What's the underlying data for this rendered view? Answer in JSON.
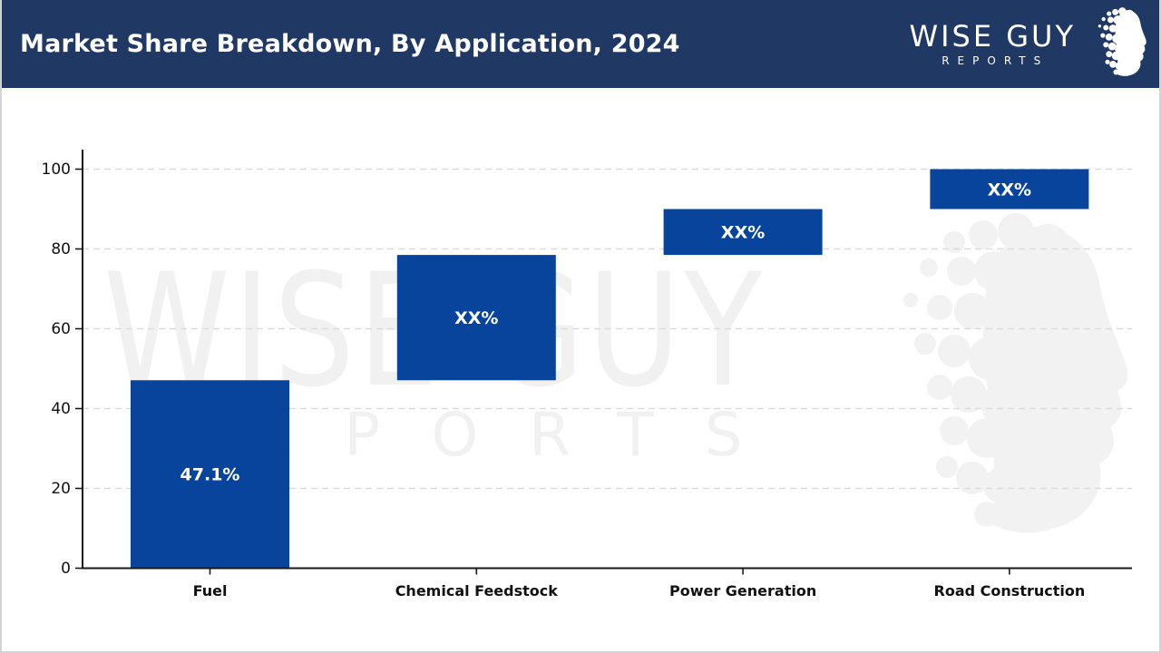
{
  "header": {
    "title": "Market Share Breakdown, By Application, 2024",
    "logo": {
      "wordmark": "WISE GUY",
      "subtitle": "REPORTS",
      "head_icon": "head-profile-dots-icon"
    }
  },
  "watermark": {
    "line1": "WISE GUY",
    "line2": "REPORTS",
    "head_icon": "head-profile-dots-icon"
  },
  "chart_data": {
    "type": "bar",
    "subtype": "waterfall",
    "title": "Market Share Breakdown, By Application, 2024",
    "categories": [
      "Fuel",
      "Chemical Feedstock",
      "Power Generation",
      "Road Construction"
    ],
    "segments": [
      {
        "category": "Fuel",
        "start": 0,
        "end": 47.1,
        "label": "47.1%"
      },
      {
        "category": "Chemical Feedstock",
        "start": 47.1,
        "end": 78.5,
        "label": "XX%"
      },
      {
        "category": "Power Generation",
        "start": 78.5,
        "end": 90,
        "label": "XX%"
      },
      {
        "category": "Road Construction",
        "start": 90,
        "end": 100,
        "label": "XX%"
      }
    ],
    "visible_bar_labels": [
      "47.1%",
      "XX%",
      "XX%",
      "XX%"
    ],
    "yticks": [
      0,
      20,
      40,
      60,
      80,
      100
    ],
    "ylim": [
      0,
      105
    ],
    "xlabel": "",
    "ylabel": "",
    "grid": "horizontal-dashed",
    "legend": "none"
  },
  "colors": {
    "header_bg": "#1f3864",
    "bar": "#08449c",
    "grid": "#dcdcdc",
    "axis": "#1a1a1a",
    "tick_text": "#111111",
    "bar_label": "#ffffff",
    "watermark": "#f1f1f1",
    "page_bg": "#ffffff",
    "border": "#d4d4d4"
  }
}
